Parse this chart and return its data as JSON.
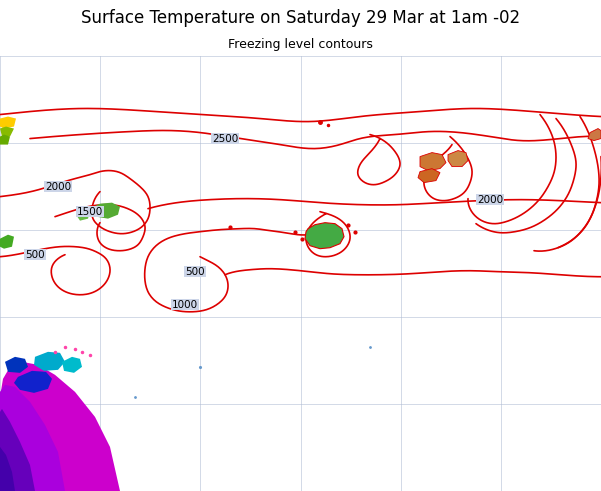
{
  "title": "Surface Temperature on Saturday 29 Mar at 1am -02",
  "subtitle": "Freezing level contours",
  "title_fontsize": 12,
  "subtitle_fontsize": 9,
  "map_bg": "#ccd5e8",
  "title_bg": "#ffffff",
  "contour_color": "#dd0000",
  "grid_color": "#b0bdd4",
  "figsize": [
    6.01,
    4.91
  ],
  "dpi": 100,
  "contour_lw": 1.2,
  "label_fontsize": 7.5
}
